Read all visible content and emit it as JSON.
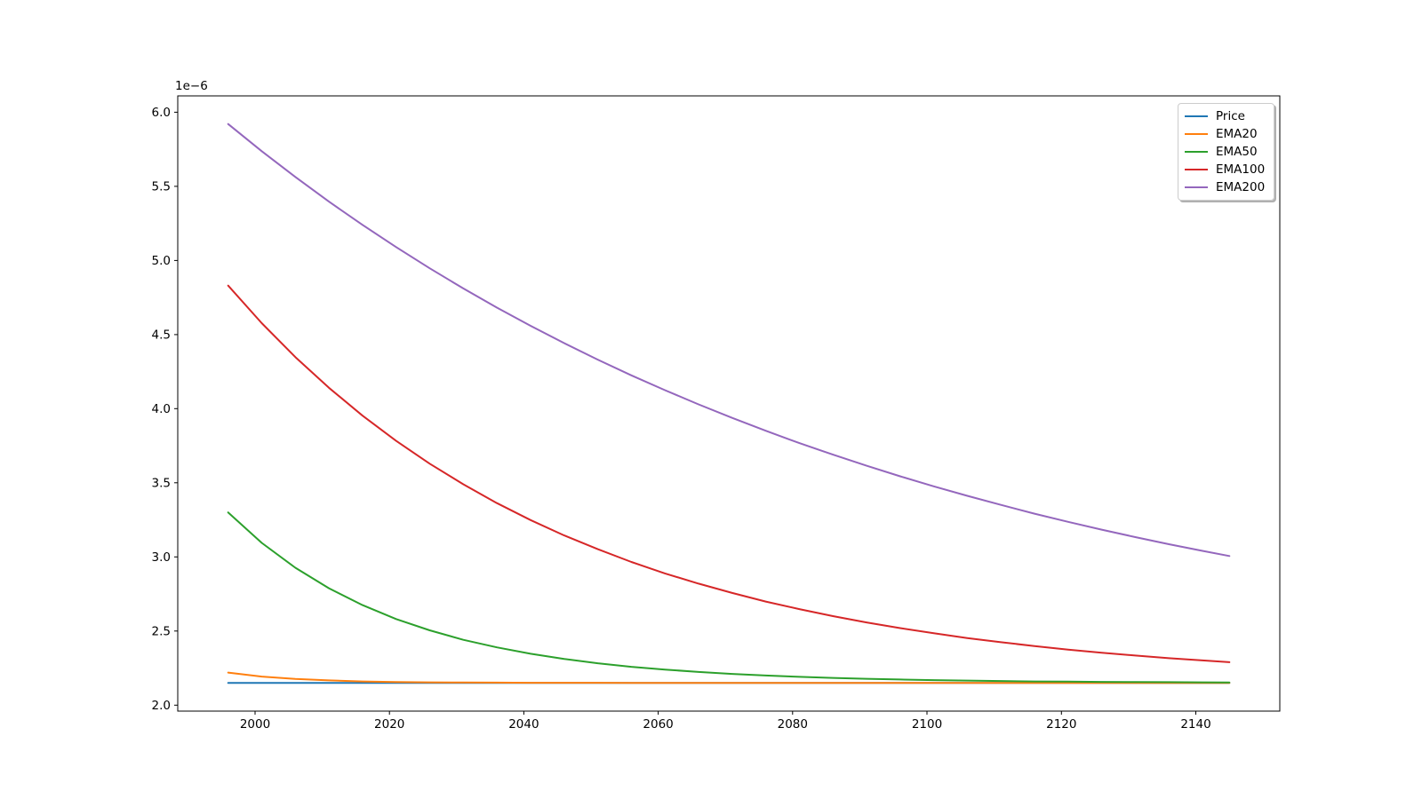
{
  "figure": {
    "background": "#ffffff",
    "frame_color": "#000000",
    "text_color": "#000000",
    "legend_border_color": "#cccccc"
  },
  "chart_data": {
    "type": "line",
    "title": "",
    "xlabel": "",
    "ylabel": "",
    "grid": false,
    "x_axis": {
      "lim": [
        1988.5,
        2152.5
      ],
      "ticks": [
        2000,
        2020,
        2040,
        2060,
        2080,
        2100,
        2120,
        2140
      ],
      "tick_labels": [
        "2000",
        "2020",
        "2040",
        "2060",
        "2080",
        "2100",
        "2120",
        "2140"
      ]
    },
    "y_axis": {
      "lim": [
        1.96,
        6.11
      ],
      "ticks": [
        2.0,
        2.5,
        3.0,
        3.5,
        4.0,
        4.5,
        5.0,
        5.5,
        6.0
      ],
      "tick_labels": [
        "2.0",
        "2.5",
        "3.0",
        "3.5",
        "4.0",
        "4.5",
        "5.0",
        "5.5",
        "6.0"
      ],
      "offset_text": "1e−6",
      "unit_multiplier": 1e-06
    },
    "x": [
      1996,
      2001,
      2006,
      2011,
      2016,
      2021,
      2026,
      2031,
      2036,
      2041,
      2046,
      2051,
      2056,
      2061,
      2066,
      2071,
      2076,
      2081,
      2086,
      2091,
      2096,
      2101,
      2106,
      2111,
      2116,
      2121,
      2126,
      2131,
      2136,
      2141,
      2145
    ],
    "series": [
      {
        "name": "Price",
        "color": "#1f77b4",
        "values": [
          2.15,
          2.15,
          2.15,
          2.15,
          2.15,
          2.15,
          2.15,
          2.15,
          2.15,
          2.15,
          2.15,
          2.15,
          2.15,
          2.15,
          2.15,
          2.15,
          2.15,
          2.15,
          2.15,
          2.15,
          2.15,
          2.15,
          2.15,
          2.15,
          2.15,
          2.15,
          2.15,
          2.15,
          2.15,
          2.15,
          2.15
        ]
      },
      {
        "name": "EMA20",
        "color": "#ff7f0e",
        "values": [
          2.22,
          2.193,
          2.177,
          2.167,
          2.16,
          2.156,
          2.154,
          2.153,
          2.152,
          2.151,
          2.151,
          2.151,
          2.15,
          2.15,
          2.15,
          2.15,
          2.15,
          2.15,
          2.15,
          2.15,
          2.15,
          2.15,
          2.15,
          2.15,
          2.15,
          2.15,
          2.15,
          2.15,
          2.15,
          2.15,
          2.15
        ]
      },
      {
        "name": "EMA50",
        "color": "#2ca02c",
        "values": [
          3.3,
          3.095,
          2.927,
          2.789,
          2.675,
          2.581,
          2.505,
          2.441,
          2.39,
          2.347,
          2.312,
          2.283,
          2.259,
          2.24,
          2.224,
          2.211,
          2.2,
          2.191,
          2.184,
          2.178,
          2.173,
          2.169,
          2.166,
          2.163,
          2.16,
          2.159,
          2.157,
          2.156,
          2.155,
          2.154,
          2.153
        ]
      },
      {
        "name": "EMA100",
        "color": "#d62728",
        "values": [
          4.83,
          4.577,
          4.348,
          4.141,
          3.953,
          3.783,
          3.629,
          3.49,
          3.363,
          3.249,
          3.145,
          3.052,
          2.966,
          2.889,
          2.82,
          2.757,
          2.699,
          2.648,
          2.601,
          2.558,
          2.52,
          2.485,
          2.453,
          2.425,
          2.399,
          2.375,
          2.354,
          2.335,
          2.317,
          2.302,
          2.29
        ]
      },
      {
        "name": "EMA200",
        "color": "#9467bd",
        "values": [
          5.92,
          5.737,
          5.563,
          5.397,
          5.24,
          5.09,
          4.947,
          4.811,
          4.682,
          4.559,
          4.442,
          4.331,
          4.225,
          4.125,
          4.029,
          3.938,
          3.851,
          3.768,
          3.69,
          3.615,
          3.544,
          3.476,
          3.412,
          3.351,
          3.292,
          3.237,
          3.184,
          3.134,
          3.086,
          3.041,
          3.006
        ]
      }
    ],
    "legend": {
      "position": "upper right",
      "entries": [
        "Price",
        "EMA20",
        "EMA50",
        "EMA100",
        "EMA200"
      ]
    }
  }
}
